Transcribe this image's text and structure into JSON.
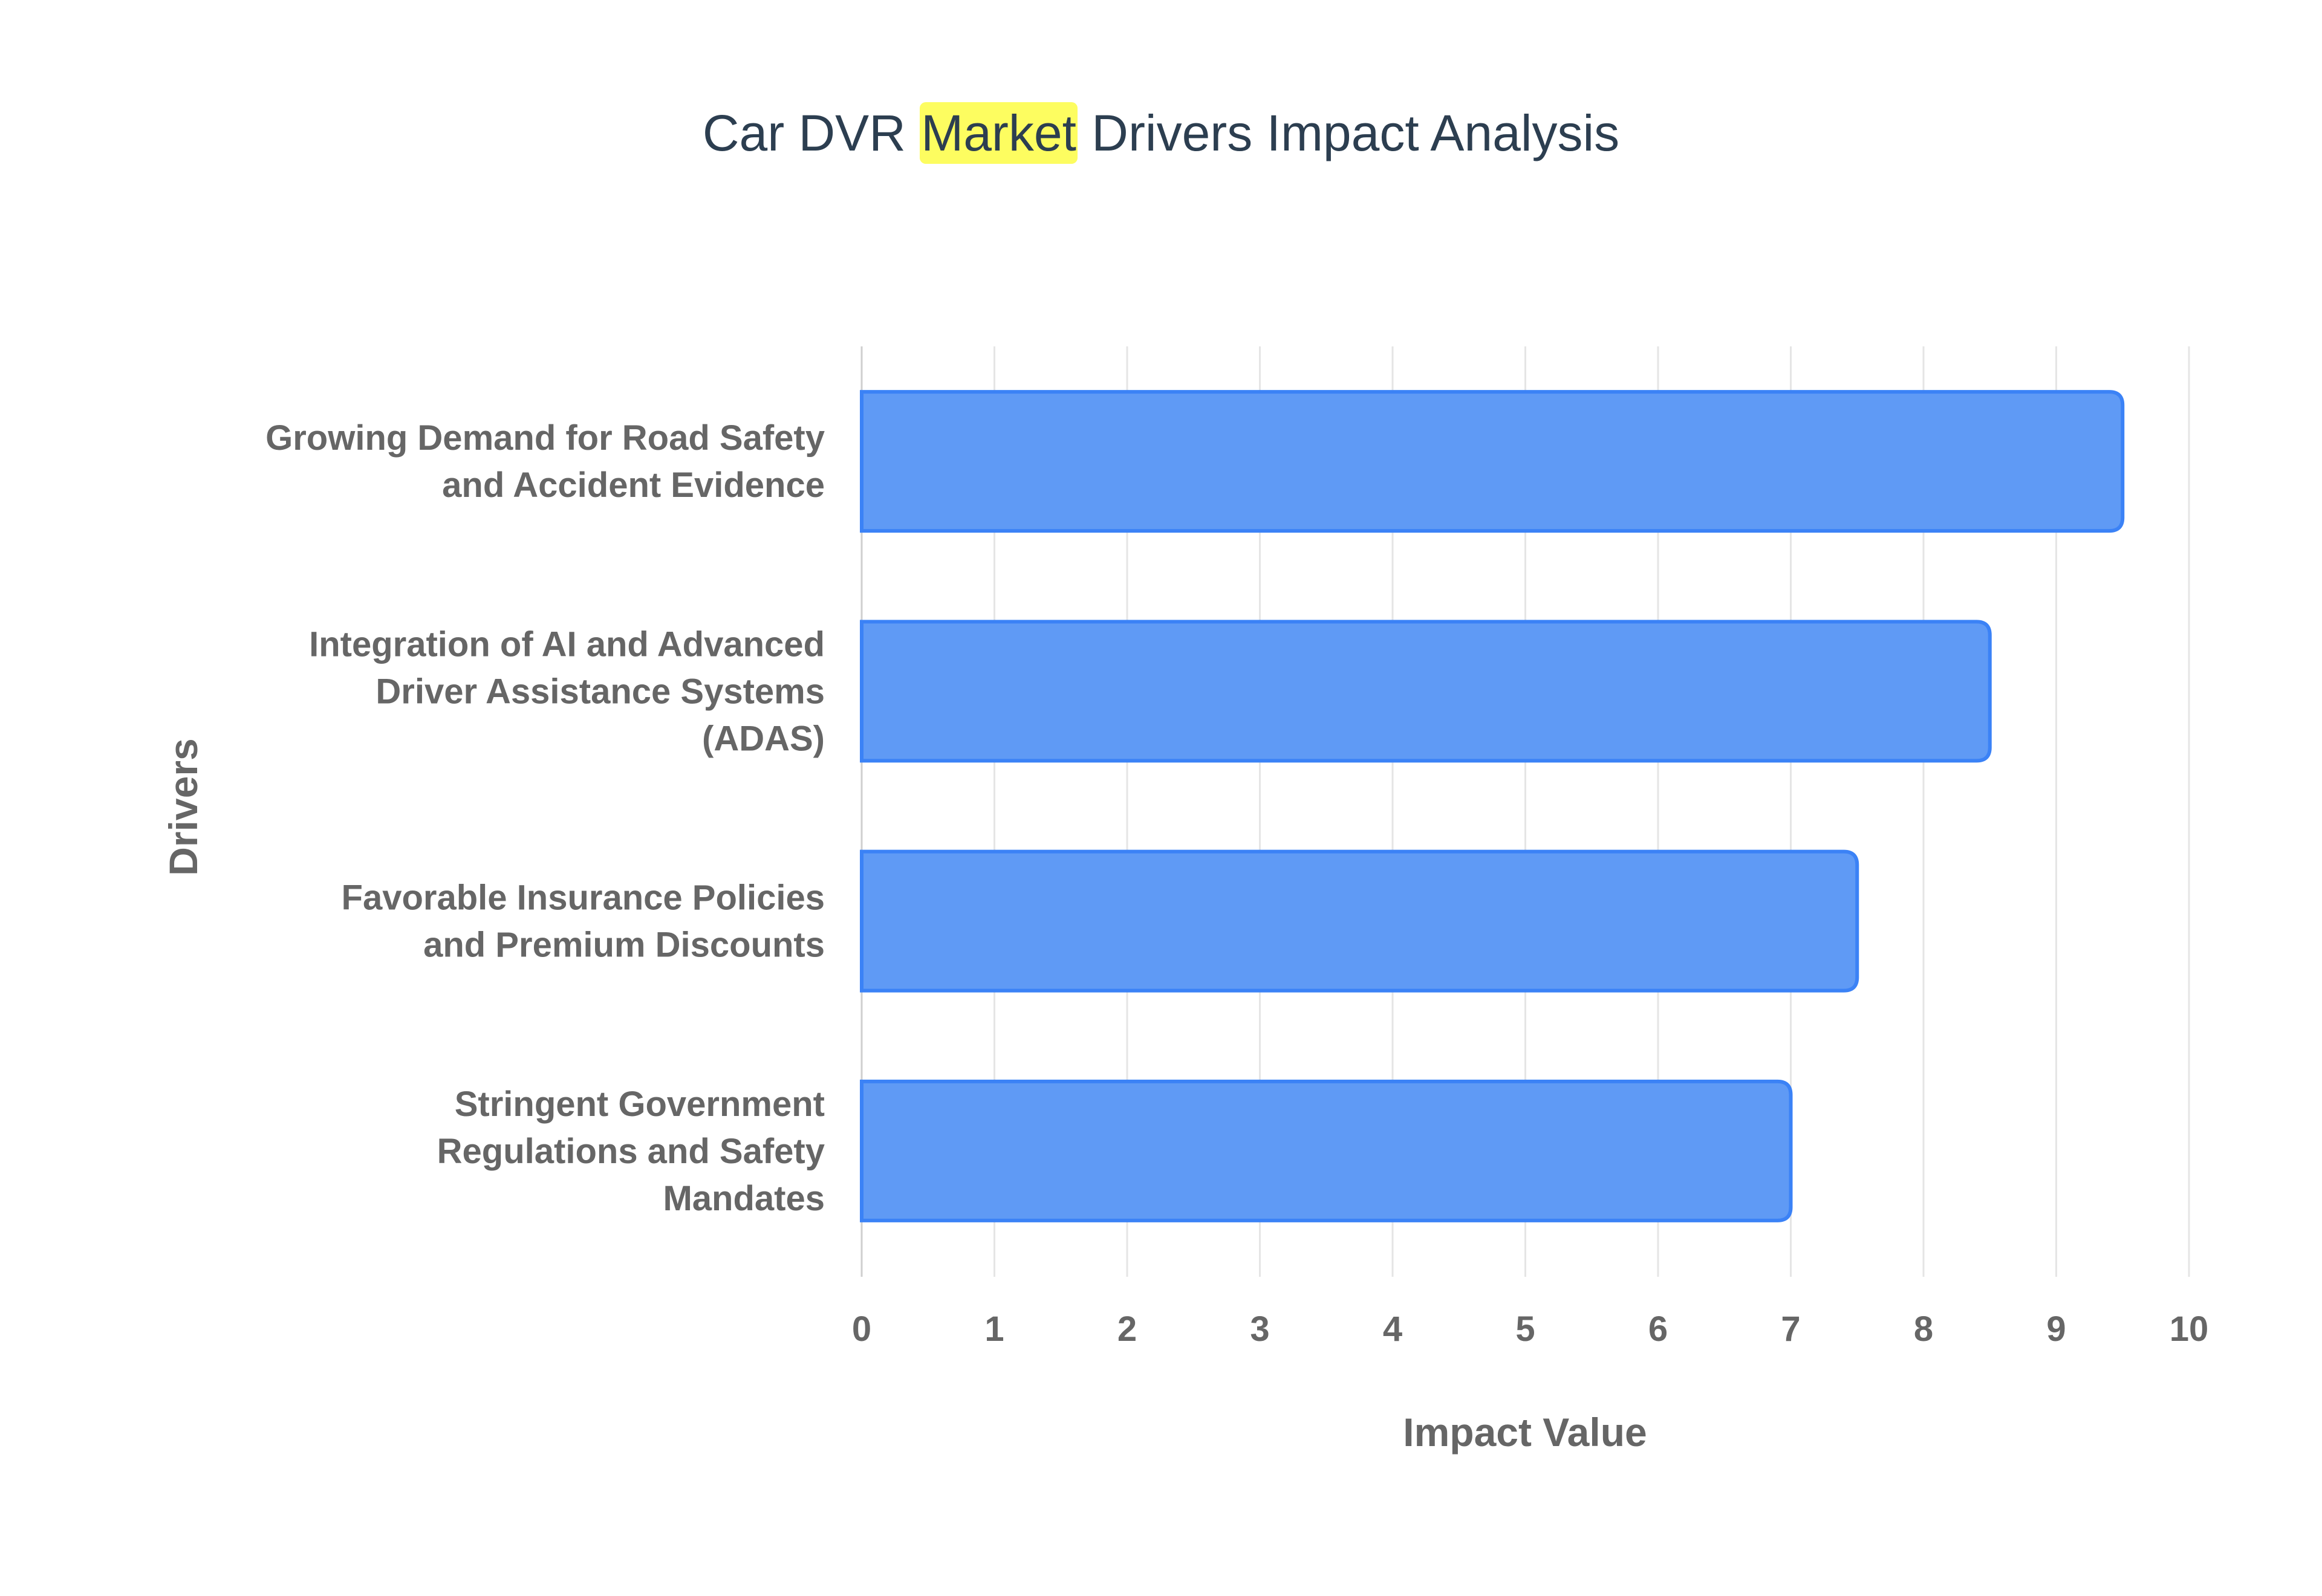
{
  "chart_data": {
    "type": "bar",
    "orientation": "horizontal",
    "title": "Car DVR Market Drivers Impact Analysis",
    "title_highlight": "Market",
    "categories": [
      "Growing Demand for Road Safety and Accident Evidence",
      "Integration of AI and Advanced Driver Assistance Systems (ADAS)",
      "Favorable Insurance Policies and Premium Discounts",
      "Stringent Government Regulations and Safety Mandates"
    ],
    "values": [
      9.5,
      8.5,
      7.5,
      7
    ],
    "xlabel": "Impact Value",
    "ylabel": "Drivers",
    "xlim": [
      0,
      10
    ],
    "xticks": [
      "0",
      "1",
      "2",
      "3",
      "4",
      "5",
      "6",
      "7",
      "8",
      "9",
      "10"
    ],
    "grid": true,
    "legend": "none",
    "colors": {
      "bar_fill": "#5f9af5",
      "bar_border": "#3b82f6",
      "highlight": "#fdfd60",
      "title": "#2c3e50",
      "grid": "#e5e5e5",
      "text": "#666666"
    }
  }
}
